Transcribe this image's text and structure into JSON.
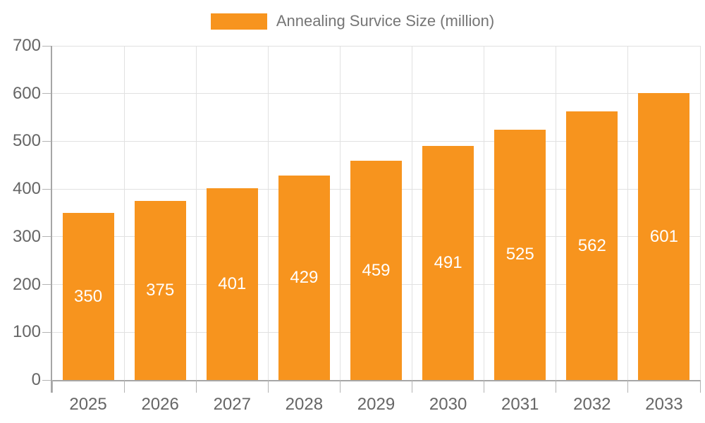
{
  "chart_data": {
    "type": "bar",
    "title": "",
    "legend_label": "Annealing Survice Size (million)",
    "categories": [
      "2025",
      "2026",
      "2027",
      "2028",
      "2029",
      "2030",
      "2031",
      "2032",
      "2033"
    ],
    "values": [
      350,
      375,
      401,
      429,
      459,
      491,
      525,
      562,
      601
    ],
    "xlabel": "",
    "ylabel": "",
    "ylim": [
      0,
      700
    ],
    "ytick_step": 100,
    "yticks": [
      0,
      100,
      200,
      300,
      400,
      500,
      600,
      700
    ],
    "grid": true,
    "legend_position": "top-center",
    "value_label_position": "centered-inside-bar"
  },
  "colors": {
    "bar": "#F7941E",
    "grid": "#E1E1E1",
    "axis": "#A6A6A6",
    "tick": "#B3B3B3",
    "axis_text": "#666666",
    "legend_text": "#757575",
    "value_text": "#FFFFFF",
    "background": "#FFFFFF"
  }
}
